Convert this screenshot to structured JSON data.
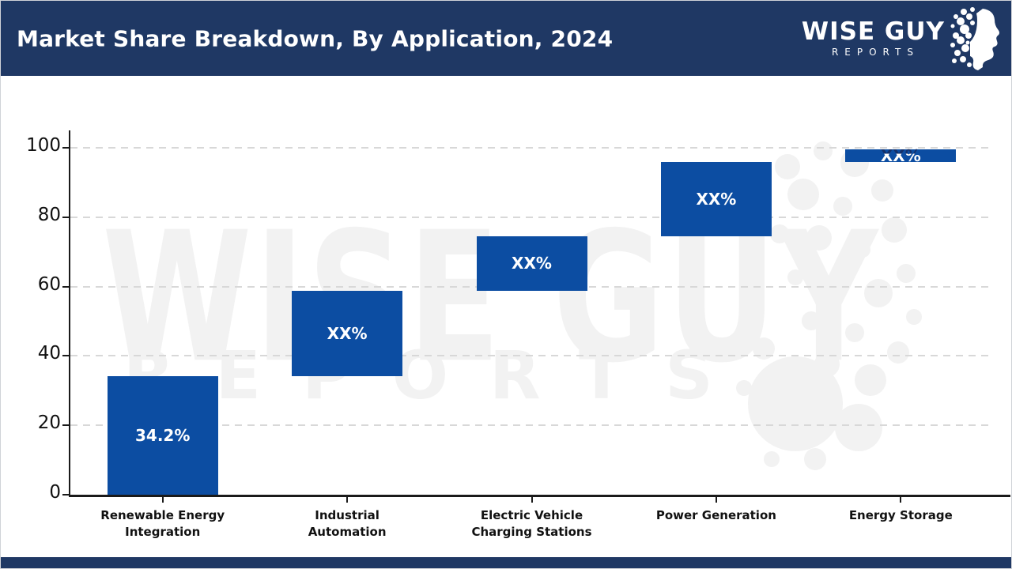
{
  "header": {
    "title": "Market Share Breakdown, By Application, 2024",
    "bg_color": "#1f3864",
    "logo": {
      "wordmark": "WISE GUY",
      "subtext": "REPORTS"
    }
  },
  "watermark": {
    "wordmark": "WISE GUY",
    "subtext": "REPORTS"
  },
  "chart_data": {
    "type": "bar",
    "subtype": "waterfall",
    "title": "Market Share Breakdown, By Application, 2024",
    "categories": [
      "Renewable Energy Integration",
      "Industrial Automation",
      "Electric Vehicle Charging Stations",
      "Power Generation",
      "Energy Storage"
    ],
    "segments": [
      {
        "category_lines": [
          "Renewable Energy",
          "Integration"
        ],
        "start": 0,
        "end": 34.2,
        "value": 34.2,
        "label": "34.2%"
      },
      {
        "category_lines": [
          "Industrial",
          "Automation"
        ],
        "start": 34.2,
        "end": 58.8,
        "value": 24.6,
        "label": "XX%"
      },
      {
        "category_lines": [
          "Electric Vehicle",
          "Charging Stations"
        ],
        "start": 58.8,
        "end": 74.5,
        "value": 15.7,
        "label": "XX%"
      },
      {
        "category_lines": [
          "Power Generation"
        ],
        "start": 74.5,
        "end": 96.0,
        "value": 21.5,
        "label": "XX%"
      },
      {
        "category_lines": [
          "Energy Storage"
        ],
        "start": 96.0,
        "end": 99.5,
        "value": 3.5,
        "label": "XX%"
      }
    ],
    "yticks": [
      0,
      20,
      40,
      60,
      80,
      100
    ],
    "ylim": [
      0,
      105
    ],
    "grid": "horizontal dashed",
    "legend": "none",
    "bar_color": "#0c4da2",
    "bar_label_color": "#ffffff",
    "axis_color": "#1a1a1a"
  },
  "footer": {
    "bg_color": "#1f3864"
  }
}
